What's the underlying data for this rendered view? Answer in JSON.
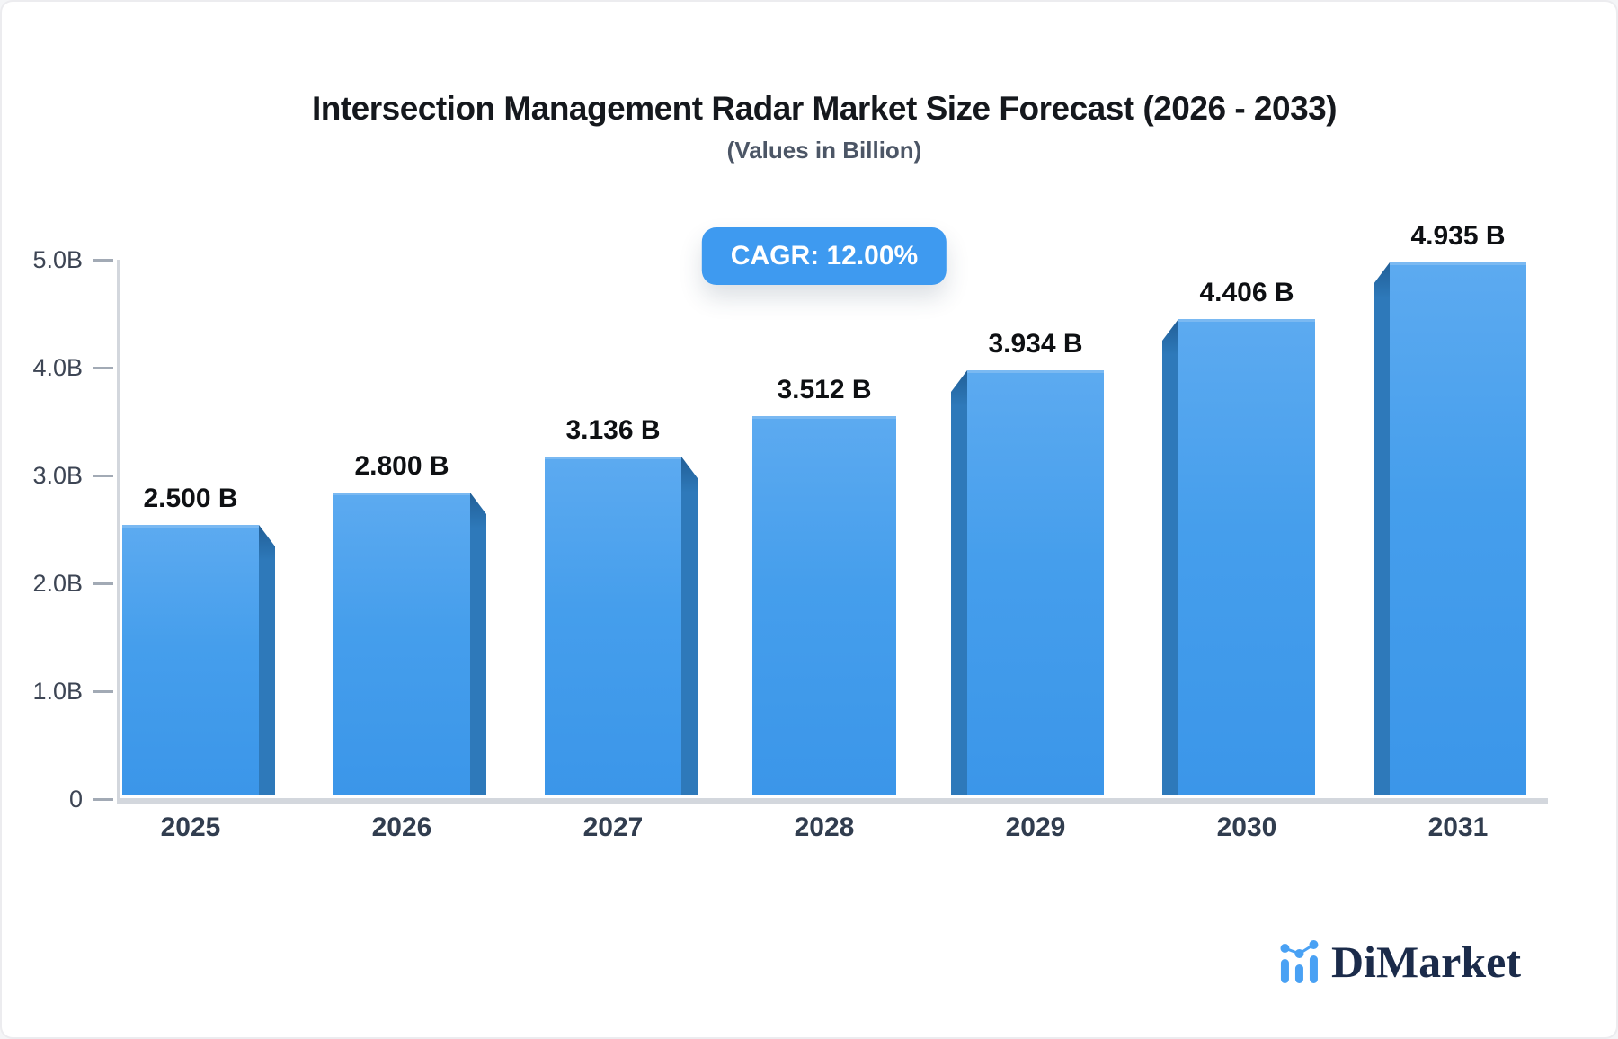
{
  "header": {
    "title": "Intersection Management Radar Market Size Forecast (2026 - 2033)",
    "subtitle": "(Values in Billion)"
  },
  "badge": {
    "label": "CAGR: 12.00%"
  },
  "brand": {
    "name": "DiMarket"
  },
  "chart_data": {
    "type": "bar",
    "title": "Intersection Management Radar Market Size Forecast (2026 - 2033)",
    "subtitle": "(Values in Billion)",
    "cagr": "12.00%",
    "categories": [
      "2025",
      "2026",
      "2027",
      "2028",
      "2029",
      "2030",
      "2031"
    ],
    "values": [
      2.5,
      2.8,
      3.136,
      3.512,
      3.934,
      4.406,
      4.935
    ],
    "value_labels": [
      "2.500 B",
      "2.800 B",
      "3.136 B",
      "3.512 B",
      "3.934 B",
      "4.406 B",
      "4.935 B"
    ],
    "unit": "B",
    "xlabel": "",
    "ylabel": "",
    "ylim": [
      0,
      5.0
    ],
    "y_ticks": [
      "5.0B",
      "4.0B",
      "3.0B",
      "2.0B",
      "1.0B",
      "0"
    ],
    "grid": "off",
    "legend": "none",
    "bar_color": "#3b96e9",
    "bar_side_color": "#2e79ba",
    "badge_color": "#3e9af0",
    "axis_color": "#d3d7dd"
  }
}
